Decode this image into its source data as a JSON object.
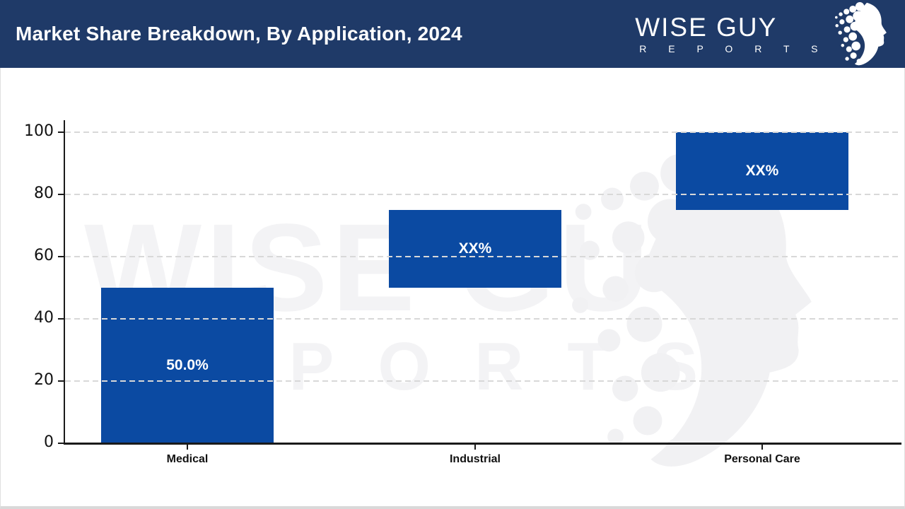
{
  "header": {
    "title": "Market Share Breakdown, By Application, 2024",
    "brand": {
      "line1": "WISE GUY",
      "line2": "R E P O R T S"
    }
  },
  "watermark": {
    "line1": "WISE GUY",
    "line2": "REPORTS"
  },
  "colors": {
    "header_bg": "#1F3A68",
    "bar": "#0B4AA2",
    "bar_label": "#FFFFFF",
    "gridline": "#D8D8D8",
    "axis": "#1A1A1A",
    "watermark": "#F3F3F5"
  },
  "chart_data": {
    "type": "bar",
    "subtype": "waterfall",
    "title": "Market Share Breakdown, By Application, 2024",
    "categories": [
      "Medical",
      "Industrial",
      "Personal Care"
    ],
    "bars": [
      {
        "category": "Medical",
        "start": 0,
        "end": 50,
        "label": "50.0%"
      },
      {
        "category": "Industrial",
        "start": 50,
        "end": 75,
        "label": "XX%"
      },
      {
        "category": "Personal Care",
        "start": 75,
        "end": 100,
        "label": "XX%"
      }
    ],
    "xlabel": "",
    "ylabel": "",
    "ylim": [
      0,
      105
    ],
    "yticks": [
      0,
      20,
      40,
      60,
      80,
      100
    ],
    "grid": "horizontal-dashed",
    "legend": "none"
  }
}
